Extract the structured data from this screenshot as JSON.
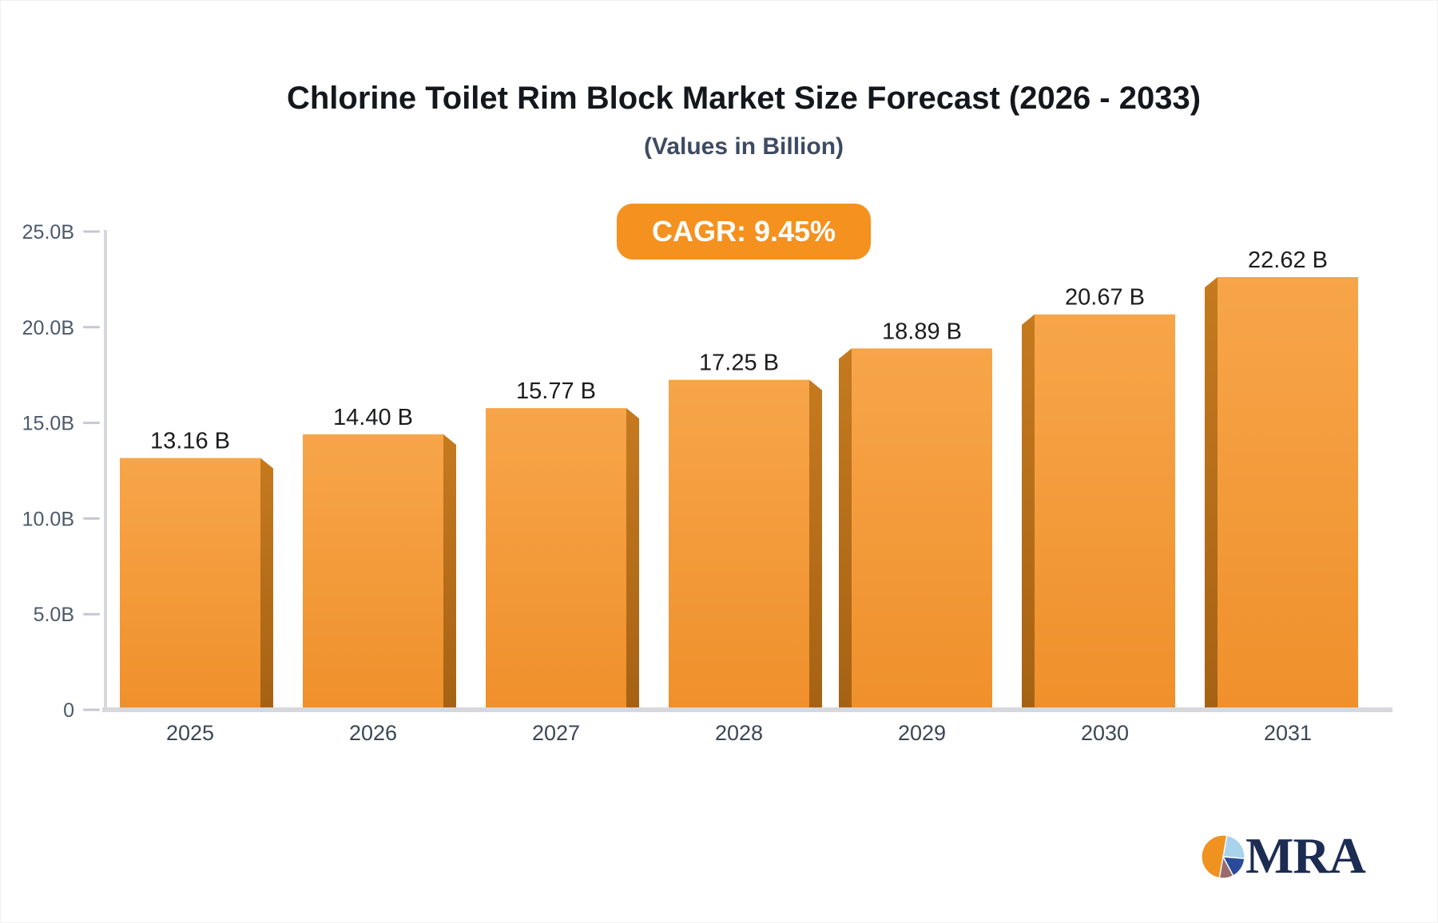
{
  "header": {
    "title": "Chlorine Toilet Rim Block Market Size Forecast (2026 - 2033)",
    "subtitle": "(Values in Billion)",
    "cagr_label": "CAGR: 9.45%"
  },
  "chart_data": {
    "type": "bar",
    "title": "Chlorine Toilet Rim Block Market Size Forecast (2026 - 2033)",
    "subtitle": "(Values in Billion)",
    "annotation": "CAGR: 9.45%",
    "categories": [
      "2025",
      "2026",
      "2027",
      "2028",
      "2029",
      "2030",
      "2031"
    ],
    "values": [
      13.16,
      14.4,
      15.77,
      17.25,
      18.89,
      20.67,
      22.62
    ],
    "value_labels": [
      "13.16 B",
      "14.40 B",
      "15.77 B",
      "17.25 B",
      "18.89 B",
      "20.67 B",
      "22.62 B"
    ],
    "ylim": [
      0,
      25
    ],
    "y_ticks": [
      {
        "value": 25,
        "label": "25.0B"
      },
      {
        "value": 20,
        "label": "20.0B"
      },
      {
        "value": 15,
        "label": "15.0B"
      },
      {
        "value": 10,
        "label": "10.0B"
      },
      {
        "value": 5,
        "label": "5.0B"
      },
      {
        "value": 0,
        "label": "0"
      }
    ],
    "grid": false,
    "legend": "none",
    "bar_style": "3d-extruded",
    "colors": {
      "bar_face_top": "#F7A54A",
      "bar_face_bottom": "#EF902B",
      "bar_side_top": "#C57A1F",
      "bar_side_bottom": "#A66214",
      "badge_bg": "#F5911F",
      "badge_text": "#FFFFFF",
      "title_text": "#14171C",
      "subtitle_text": "#3D4B61",
      "value_text": "#1B1C1E",
      "axis_tick_text": "#4C596C",
      "category_text": "#3B4656",
      "axis_line": "#D6D8DD",
      "tick_dash": "#C3C9D2"
    }
  },
  "logo": {
    "text": "MRA",
    "colors": {
      "orange": "#F0921F",
      "light_blue": "#A9D2ED",
      "blue": "#2A4B9B",
      "mauve": "#9A6B6E",
      "text_navy": "#1C2C52"
    }
  }
}
